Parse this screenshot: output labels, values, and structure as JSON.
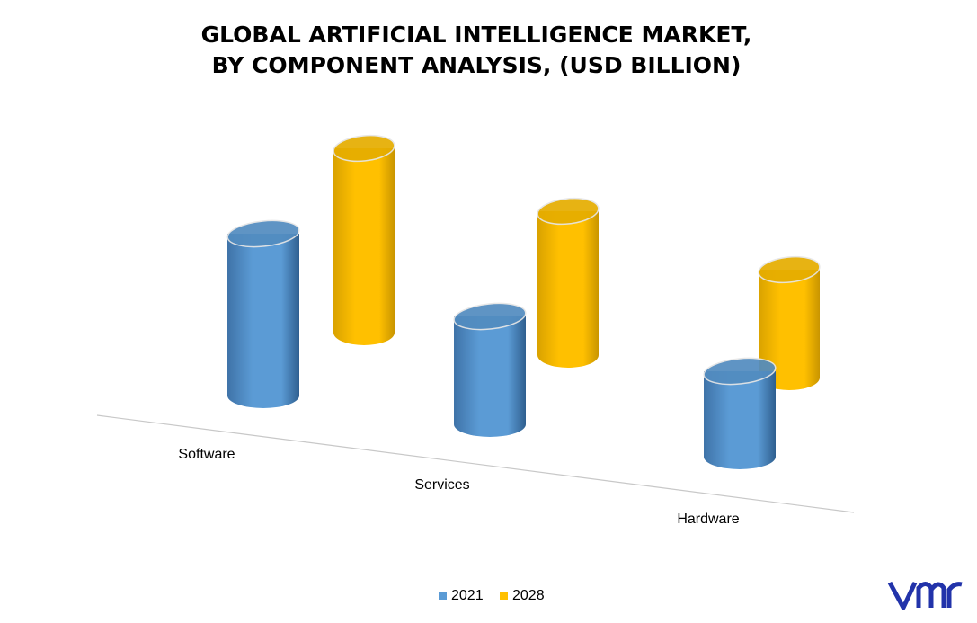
{
  "chart_data": {
    "type": "cylinder3d",
    "title": [
      "GLOBAL ARTIFICIAL INTELLIGENCE MARKET,",
      "BY COMPONENT ANALYSIS, (USD BILLION)"
    ],
    "categories": [
      "Software",
      "Services",
      "Hardware"
    ],
    "series": [
      {
        "name": "2021",
        "color": "#5b9bd5",
        "values": [
          36,
          24,
          19
        ]
      },
      {
        "name": "2028",
        "color": "#ffc000",
        "values": [
          41,
          32,
          24
        ]
      }
    ],
    "legend": "bottom"
  }
}
